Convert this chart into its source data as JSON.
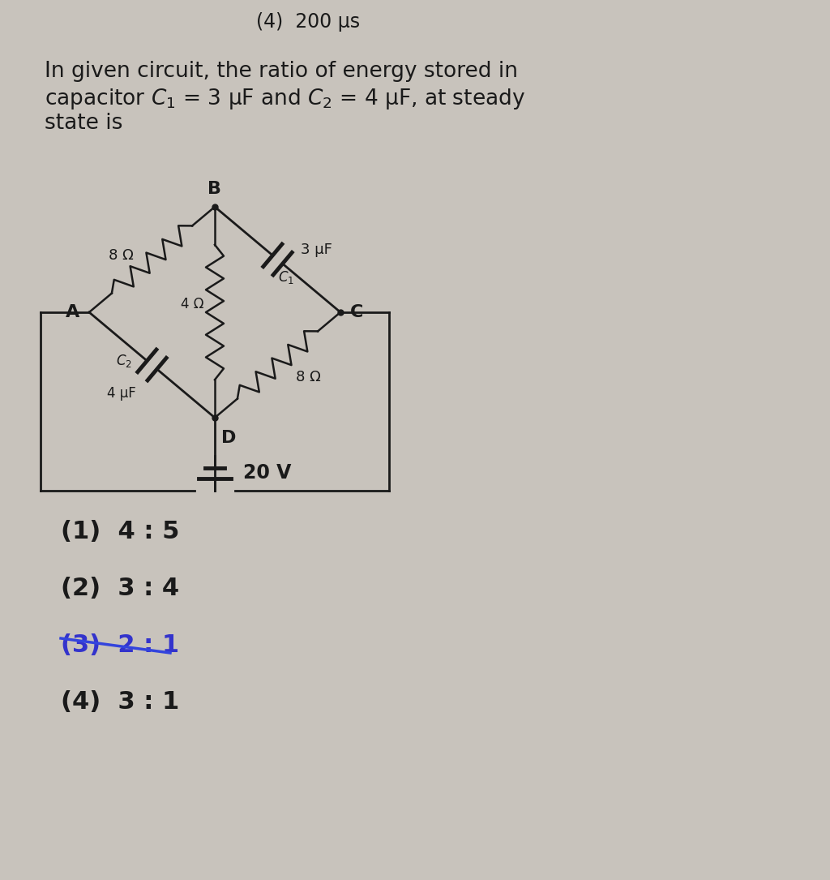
{
  "bg_color": "#c8c3bc",
  "text_color": "#1a1a1a",
  "dark_text": "#111111",
  "question_line1": "In given circuit, the ratio of energy stored in",
  "question_line2": "capacitor $C_1$ = 3 μF and $C_2$ = 4 μF, at steady",
  "question_line3": "state is",
  "top_text": "(4)  200 μs",
  "options": [
    "(1)  4 : 5",
    "(2)  3 : 4",
    "(3)  2 : 1",
    "(4)  3 : 1"
  ],
  "circuit_voltage": "20 V",
  "circuit_color": "#1a1a1a",
  "option3_color": "#3333cc"
}
